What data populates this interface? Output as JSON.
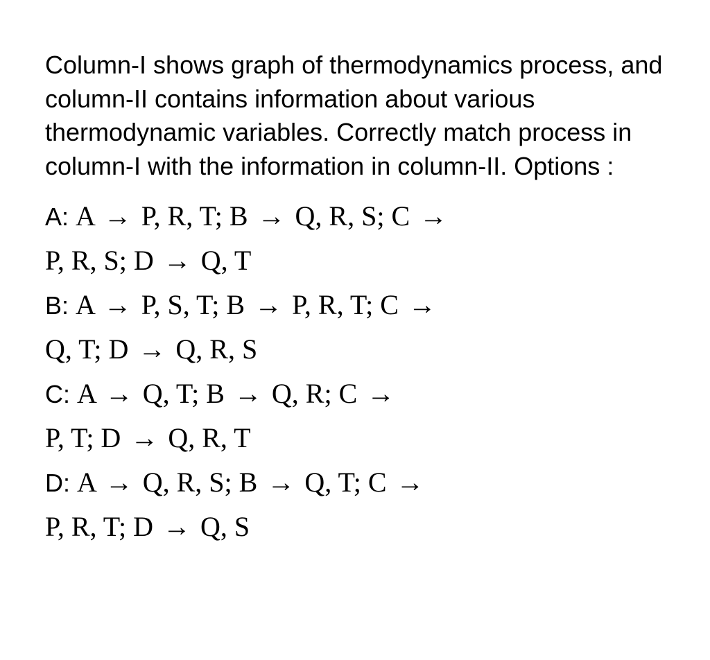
{
  "question": {
    "intro": "Column-I shows graph of thermodynamics process, and column-II contains information about various thermodynamic variables. Correctly match process in column-I with the information in column-II. Options :"
  },
  "options": {
    "a": {
      "label": "A:",
      "line1_part1": "A",
      "line1_arrow1": "→",
      "line1_part2": "P, R, T; B",
      "line1_arrow2": "→",
      "line1_part3": "Q, R, S; C",
      "line1_arrow3": "→",
      "line2_part1": "P, R, S; D",
      "line2_arrow1": "→",
      "line2_part2": "Q, T"
    },
    "b": {
      "label": "B:",
      "line1_part1": "A",
      "line1_arrow1": "→",
      "line1_part2": "P, S, T; B",
      "line1_arrow2": "→",
      "line1_part3": "P, R, T; C",
      "line1_arrow3": "→",
      "line2_part1": "Q, T; D",
      "line2_arrow1": "→",
      "line2_part2": "Q, R, S"
    },
    "c": {
      "label": "C:",
      "line1_part1": "A",
      "line1_arrow1": "→",
      "line1_part2": "Q, T; B",
      "line1_arrow2": "→",
      "line1_part3": "Q, R; C",
      "line1_arrow3": "→",
      "line2_part1": "P, T; D",
      "line2_arrow1": "→",
      "line2_part2": "Q, R, T"
    },
    "d": {
      "label": "D:",
      "line1_part1": "A",
      "line1_arrow1": "→",
      "line1_part2": "Q, R, S; B",
      "line1_arrow2": "→",
      "line1_part3": "Q, T; C",
      "line1_arrow3": "→",
      "line2_part1": "P, R, T; D",
      "line2_arrow1": "→",
      "line2_part2": "Q, S"
    }
  },
  "styling": {
    "background_color": "#ffffff",
    "text_color": "#000000",
    "intro_font_family": "Arial, Helvetica, sans-serif",
    "intro_font_size": 36,
    "math_font_family": "Times New Roman, Times, serif",
    "math_font_size": 40,
    "line_height": 1.35
  }
}
